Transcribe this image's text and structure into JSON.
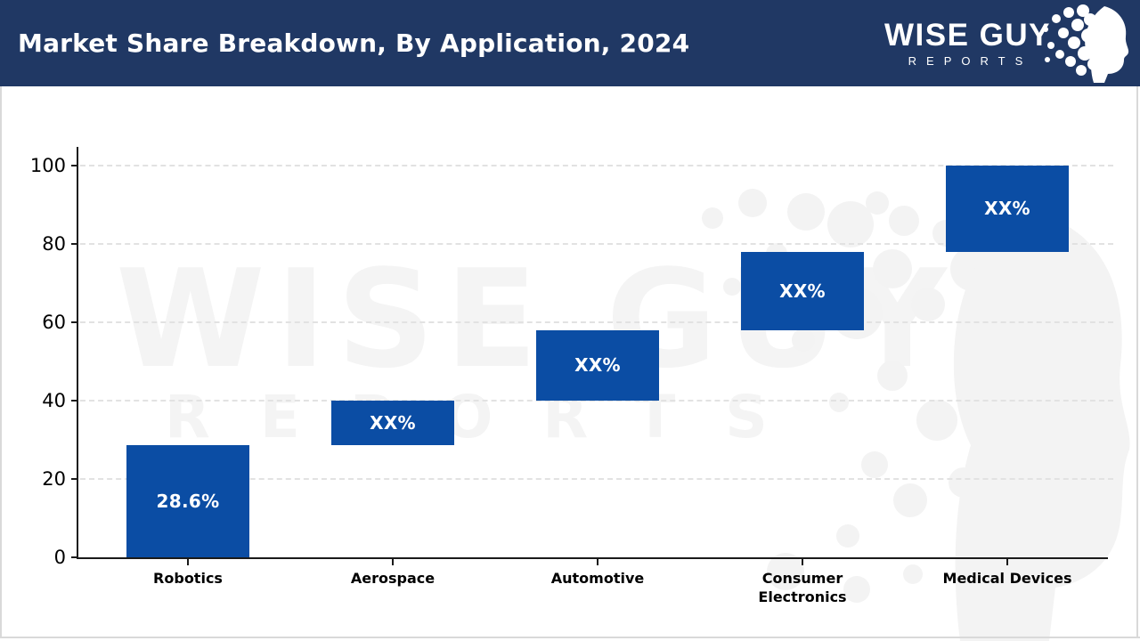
{
  "header": {
    "title": "Market Share Breakdown, By Application, 2024",
    "bg_color": "#203864",
    "logo": {
      "line1": "WISE GUY",
      "line2": "REPORTS"
    }
  },
  "watermark": {
    "line1": "WISE GUY",
    "line2": "REPORTS"
  },
  "chart_data": {
    "type": "bar",
    "subtype": "waterfall",
    "title": "",
    "xlabel": "",
    "ylabel": "",
    "categories": [
      "Robotics",
      "Aerospace",
      "Automotive",
      "Consumer Electronics",
      "Medical Devices"
    ],
    "segments": [
      {
        "category": "Robotics",
        "start": 0,
        "end": 28.6,
        "label": "28.6%"
      },
      {
        "category": "Aerospace",
        "start": 28.6,
        "end": 40,
        "label": "XX%"
      },
      {
        "category": "Automotive",
        "start": 40,
        "end": 58,
        "label": "XX%"
      },
      {
        "category": "Consumer Electronics",
        "start": 58,
        "end": 78,
        "label": "XX%"
      },
      {
        "category": "Medical Devices",
        "start": 78,
        "end": 100,
        "label": "XX%"
      }
    ],
    "ylim": [
      0,
      100
    ],
    "yticks": [
      0,
      20,
      40,
      60,
      80,
      100
    ],
    "grid": "horizontal-dashed",
    "legend": "none",
    "bar_color": "#0b4da4",
    "bar_label_color": "#ffffff",
    "axis_color": "#1a1a1a"
  }
}
